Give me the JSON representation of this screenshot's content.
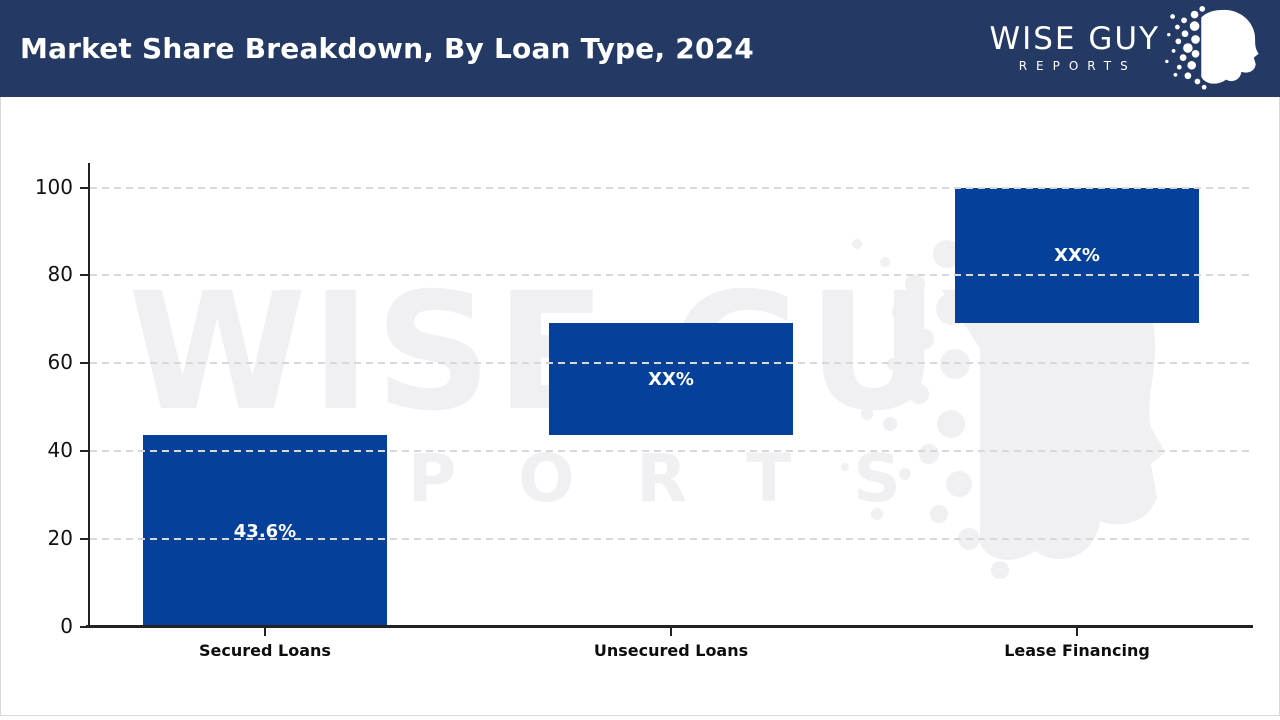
{
  "header": {
    "title": "Market Share Breakdown, By Loan Type, 2024",
    "logo": {
      "line1": "WISE GUY",
      "line2": "REPORTS"
    }
  },
  "watermark": {
    "line1": "WISE GUY",
    "line2": "REPORTS"
  },
  "chart_data": {
    "type": "bar",
    "variant": "waterfall",
    "title": "Market Share Breakdown, By Loan Type, 2024",
    "categories": [
      "Secured Loans",
      "Unsecured Loans",
      "Lease Financing"
    ],
    "segments": [
      {
        "category": "Secured Loans",
        "start": 0,
        "end": 43.6,
        "value_label": "43.6%"
      },
      {
        "category": "Unsecured Loans",
        "start": 43.6,
        "end": 69.1,
        "value_label": "XX%"
      },
      {
        "category": "Lease Financing",
        "start": 69.1,
        "end": 100,
        "value_label": "XX%"
      }
    ],
    "xlabel": "",
    "ylabel": "",
    "ylim": [
      0,
      100
    ],
    "yticks": [
      0,
      20,
      40,
      60,
      80,
      100
    ],
    "grid": "horizontal-dashed",
    "grid_over_bars": true,
    "legend": "none",
    "bar_color": "#05419b",
    "bar_label_color": "#ffffff",
    "axis_color": "#222222",
    "gridline_color": "#d8d8d8",
    "header_bg_color": "#243a64"
  }
}
